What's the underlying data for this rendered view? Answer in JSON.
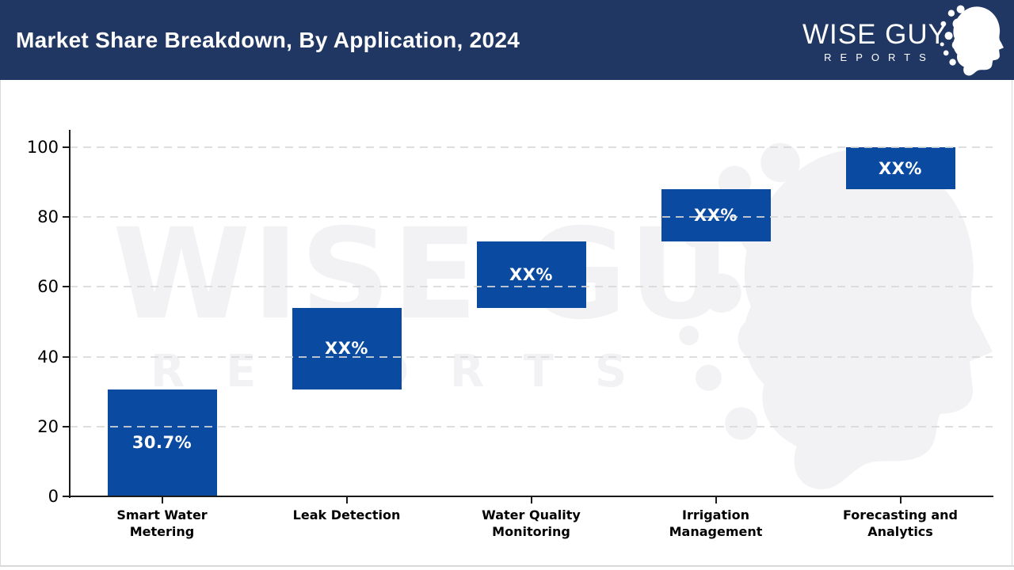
{
  "header": {
    "title": "Market Share Breakdown, By Application, 2024",
    "logo": {
      "wordmark": "WISE GUY",
      "subtitle": "REPORTS"
    }
  },
  "watermark": {
    "wordmark": "WISE GUY",
    "subtitle": "REPORTS"
  },
  "colors": {
    "header_bg": "#203763",
    "bar": "#0a4aa1",
    "bar_label": "#ffffff",
    "gridline": "#d8d8d8",
    "axis": "#1a1a1a",
    "watermark": "#f2f2f4"
  },
  "chart_data": {
    "type": "bar",
    "subtype": "waterfall",
    "title": "Market Share Breakdown, By Application, 2024",
    "categories": [
      "Smart Water\nMetering",
      "Leak Detection",
      "Water Quality\nMonitoring",
      "Irrigation\nManagement",
      "Forecasting and\nAnalytics"
    ],
    "segments": [
      {
        "category": "Smart Water Metering",
        "start": 0,
        "end": 30.7,
        "label": "30.7%"
      },
      {
        "category": "Leak Detection",
        "start": 30.7,
        "end": 54,
        "label": "XX%"
      },
      {
        "category": "Water Quality Monitoring",
        "start": 54,
        "end": 73,
        "label": "XX%"
      },
      {
        "category": "Irrigation Management",
        "start": 73,
        "end": 88,
        "label": "XX%"
      },
      {
        "category": "Forecasting and Analytics",
        "start": 88,
        "end": 100,
        "label": "XX%"
      }
    ],
    "ylim": [
      0,
      105
    ],
    "yticks": [
      0,
      20,
      40,
      60,
      80,
      100
    ],
    "grid": "horizontal-dashed",
    "legend": "none",
    "ylabel": "",
    "xlabel": ""
  }
}
